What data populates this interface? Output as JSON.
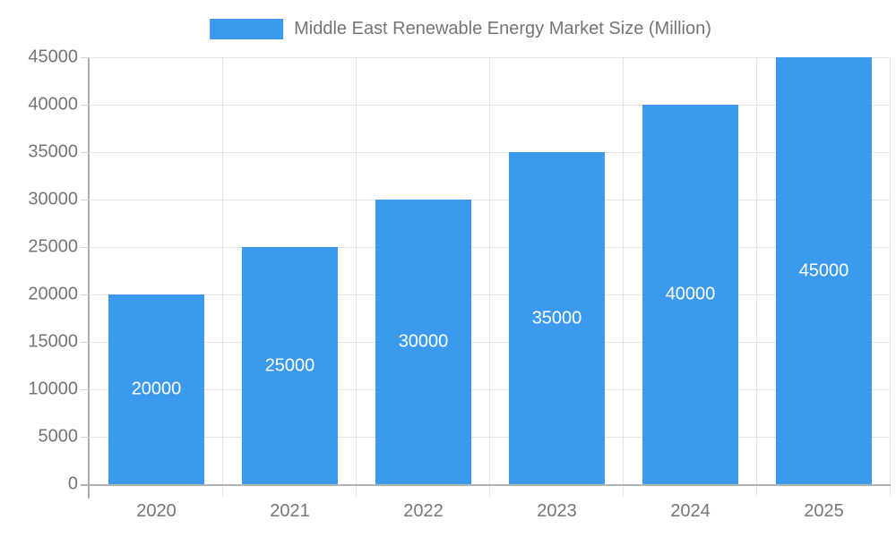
{
  "legend": {
    "label": "Middle East Renewable Energy Market Size (Million)"
  },
  "chart_data": {
    "type": "bar",
    "title": "Middle East Renewable Energy Market Size (Million)",
    "series_name": "Middle East Renewable Energy Market Size (Million)",
    "categories": [
      "2020",
      "2021",
      "2022",
      "2023",
      "2024",
      "2025"
    ],
    "values": [
      20000,
      25000,
      30000,
      35000,
      40000,
      45000
    ],
    "bar_labels": [
      "20000",
      "25000",
      "30000",
      "35000",
      "40000",
      "45000"
    ],
    "xlabel": "",
    "ylabel": "",
    "ylim": [
      0,
      45000
    ],
    "ytick_step": 5000,
    "ytick_labels": [
      "0",
      "5000",
      "10000",
      "15000",
      "20000",
      "25000",
      "30000",
      "35000",
      "40000",
      "45000"
    ],
    "grid": true,
    "legend_position": "top-center"
  },
  "colors": {
    "bar": "#3b9aee",
    "bar_label": "#ffffff",
    "gridline": "#e4e4e4",
    "tick": "#d4d4d4",
    "axis": "#ababab",
    "baseline": "#b3b3b3",
    "text": "#757575",
    "background": "#ffffff"
  }
}
